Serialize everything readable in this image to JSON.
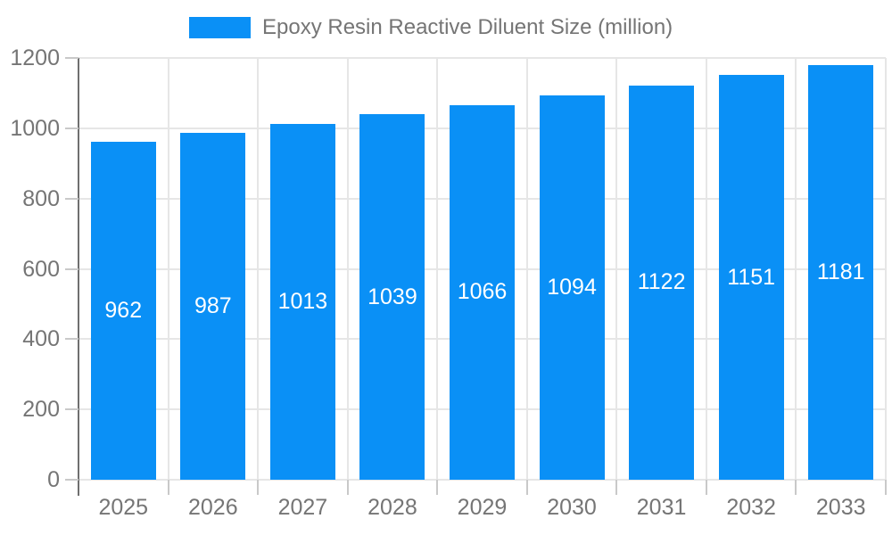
{
  "legend": {
    "label": "Epoxy Resin Reactive Diluent Size (million)"
  },
  "chart_data": {
    "type": "bar",
    "title": "Epoxy Resin Reactive Diluent Size (million)",
    "series_name": "Epoxy Resin Reactive Diluent Size (million)",
    "categories": [
      "2025",
      "2026",
      "2027",
      "2028",
      "2029",
      "2030",
      "2031",
      "2032",
      "2033"
    ],
    "values": [
      962,
      987,
      1013,
      1039,
      1066,
      1094,
      1122,
      1151,
      1181
    ],
    "value_labels": [
      "962",
      "987",
      "1013",
      "1039",
      "1066",
      "1094",
      "1122",
      "1151",
      "1181"
    ],
    "xlabel": "",
    "ylabel": "",
    "ylim": [
      0,
      1200
    ],
    "yticks": [
      0,
      200,
      400,
      600,
      800,
      1000,
      1200
    ],
    "grid": true,
    "legend_position": "top",
    "value_labels_position": "center-inside"
  },
  "colors": {
    "bar": "#0a90f6",
    "text": "#757575",
    "grid": "#e6e6e6",
    "axis": "#6f6f6f",
    "tick": "#c9c9c9",
    "value_label": "#ffffff",
    "background": "#ffffff"
  }
}
